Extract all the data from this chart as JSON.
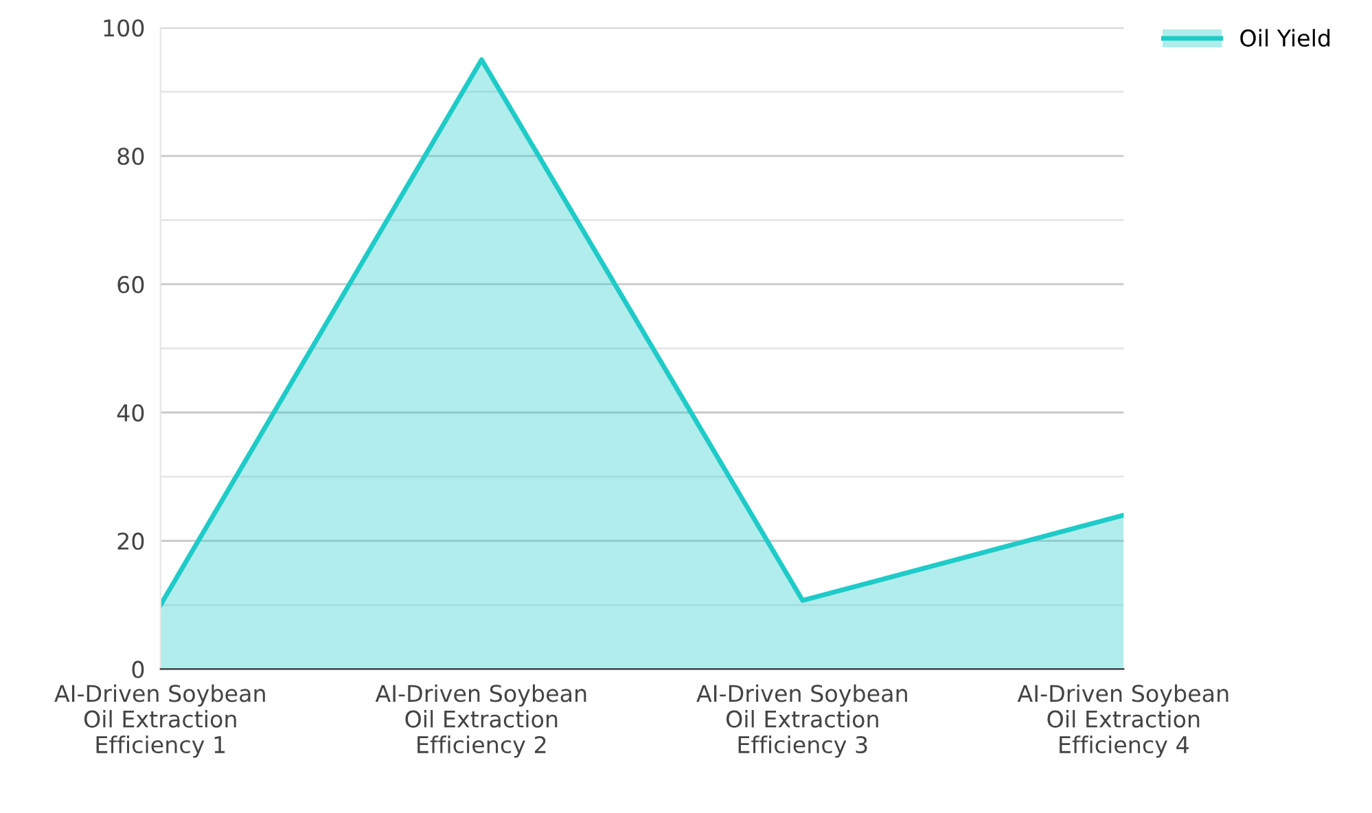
{
  "chart_data": {
    "type": "area",
    "categories": [
      "AI-Driven Soybean\nOil Extraction\nEfficiency 1",
      "AI-Driven Soybean\nOil Extraction\nEfficiency 2",
      "AI-Driven Soybean\nOil Extraction\nEfficiency 3",
      "AI-Driven Soybean\nOil Extraction\nEfficiency 4"
    ],
    "series": [
      {
        "name": "Oil Yield",
        "color": "#1fcbc8",
        "values": [
          10,
          95,
          10.7,
          24
        ]
      }
    ],
    "ylim": [
      0,
      100
    ],
    "yticks": [
      0,
      {
        "value": 10,
        "label": null
      },
      20,
      {
        "value": 30,
        "label": null
      },
      40,
      {
        "value": 50,
        "label": null
      },
      60,
      {
        "value": 70,
        "label": null
      },
      80,
      {
        "value": 90,
        "label": null
      },
      100
    ],
    "grid": "y",
    "legend": "top right"
  }
}
